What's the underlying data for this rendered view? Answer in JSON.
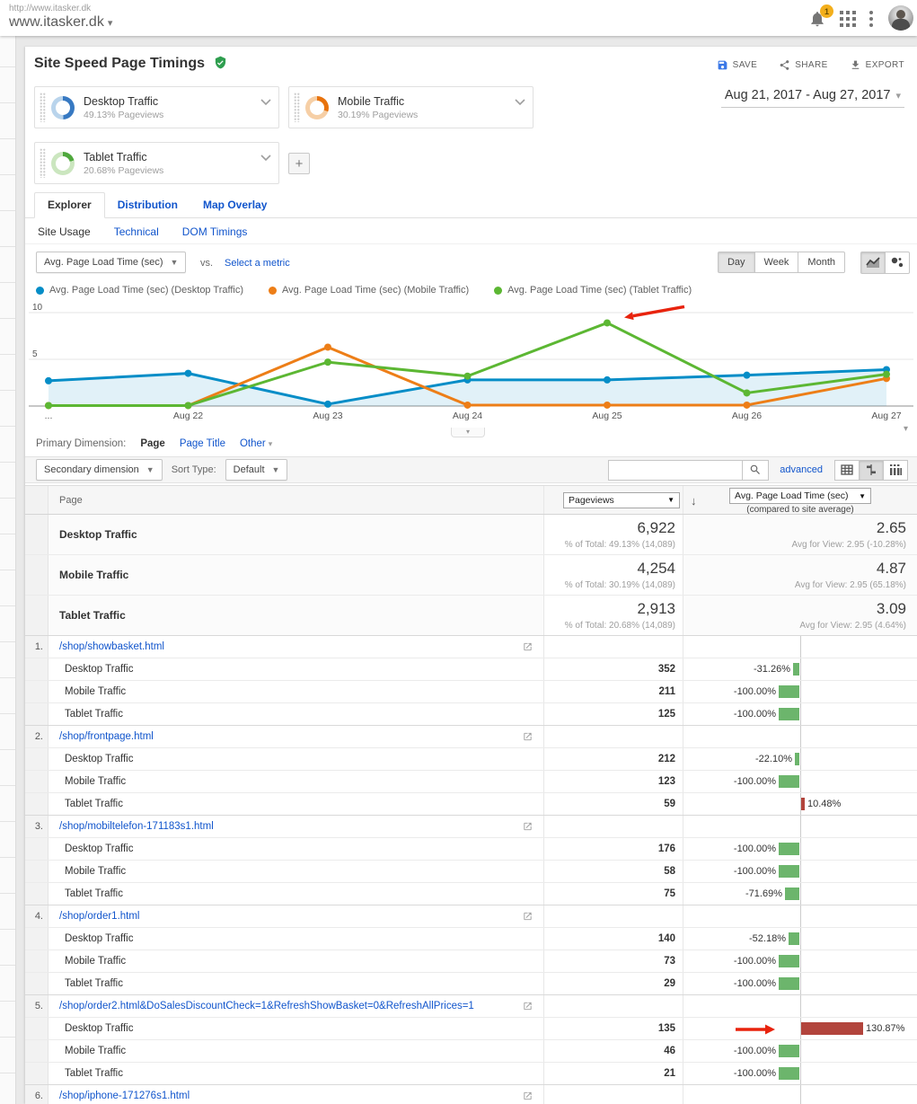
{
  "header": {
    "site_url": "http://www.itasker.dk",
    "site_name": "www.itasker.dk",
    "notification_count": "1"
  },
  "report": {
    "title": "Site Speed Page Timings"
  },
  "toolbar": {
    "save_label": "SAVE",
    "share_label": "SHARE",
    "export_label": "EXPORT",
    "date_range": "Aug 21, 2017 - Aug 27, 2017"
  },
  "segments": [
    {
      "name": "Desktop Traffic",
      "subtitle": "49.13% Pageviews",
      "pct": 49.13,
      "color": "#3779c2",
      "light_color": "#b9d4ec"
    },
    {
      "name": "Mobile Traffic",
      "subtitle": "30.19% Pageviews",
      "pct": 30.19,
      "color": "#e8720c",
      "light_color": "#f6cfa6"
    },
    {
      "name": "Tablet Traffic",
      "subtitle": "20.68% Pageviews",
      "pct": 20.68,
      "color": "#4fa83d",
      "light_color": "#cbe6bf"
    }
  ],
  "add_segment_label": "+",
  "tabs": {
    "main": [
      {
        "label": "Explorer",
        "active": true
      },
      {
        "label": "Distribution",
        "active": false
      },
      {
        "label": "Map Overlay",
        "active": false
      }
    ],
    "sub": [
      {
        "label": "Site Usage",
        "active": true
      },
      {
        "label": "Technical",
        "active": false
      },
      {
        "label": "DOM Timings",
        "active": false
      }
    ]
  },
  "controls": {
    "metric_dropdown": "Avg. Page Load Time (sec)",
    "vs_label": "vs.",
    "select_metric_label": "Select a metric",
    "granularity": [
      {
        "label": "Day",
        "active": true
      },
      {
        "label": "Week",
        "active": false
      },
      {
        "label": "Month",
        "active": false
      }
    ]
  },
  "chart_data": {
    "type": "line",
    "x": [
      "...",
      "Aug 22",
      "Aug 23",
      "Aug 24",
      "Aug 25",
      "Aug 26",
      "Aug 27"
    ],
    "ylim": [
      0,
      10
    ],
    "yticks": [
      5,
      10
    ],
    "grid": true,
    "legend_position": "top",
    "series": [
      {
        "name": "Avg. Page Load Time (sec) (Desktop Traffic)",
        "color": "#058dc7",
        "area_fill": true,
        "values": [
          2.7,
          3.5,
          0.2,
          2.8,
          2.8,
          3.3,
          3.9
        ]
      },
      {
        "name": "Avg. Page Load Time (sec) (Mobile Traffic)",
        "color": "#ed7e17",
        "area_fill": false,
        "values": [
          0.05,
          0.05,
          6.3,
          0.1,
          0.1,
          0.1,
          2.95
        ]
      },
      {
        "name": "Avg. Page Load Time (sec) (Tablet Traffic)",
        "color": "#5cb733",
        "area_fill": false,
        "values": [
          0.05,
          0.05,
          4.7,
          3.2,
          8.9,
          1.4,
          3.4
        ]
      }
    ],
    "annotations": [
      {
        "type": "arrow",
        "color": "#e8230d",
        "series_index": 2,
        "point_index": 4
      }
    ]
  },
  "dimension_bar": {
    "label": "Primary Dimension:",
    "options": [
      {
        "label": "Page",
        "active": true,
        "caret": false
      },
      {
        "label": "Page Title",
        "active": false,
        "caret": false
      },
      {
        "label": "Other",
        "active": false,
        "caret": true
      }
    ]
  },
  "table_toolbar": {
    "secondary_dimension_label": "Secondary dimension",
    "sort_type_label": "Sort Type:",
    "sort_default_label": "Default",
    "search_value": "",
    "advanced_label": "advanced"
  },
  "table": {
    "columns": {
      "page": "Page",
      "pageviews": "Pageviews",
      "metric": "Avg. Page Load Time (sec)",
      "metric_note": "(compared to site average)"
    },
    "summary_rows": [
      {
        "label": "Desktop Traffic",
        "pageviews": "6,922",
        "pv_sub": "% of Total: 49.13% (14,089)",
        "metric": "2.65",
        "metric_sub": "Avg for View: 2.95 (-10.28%)"
      },
      {
        "label": "Mobile Traffic",
        "pageviews": "4,254",
        "pv_sub": "% of Total: 30.19% (14,089)",
        "metric": "4.87",
        "metric_sub": "Avg for View: 2.95 (65.18%)"
      },
      {
        "label": "Tablet Traffic",
        "pageviews": "2,913",
        "pv_sub": "% of Total: 20.68% (14,089)",
        "metric": "3.09",
        "metric_sub": "Avg for View: 2.95 (4.64%)"
      }
    ],
    "groups": [
      {
        "num": "1.",
        "url": "/shop/showbasket.html",
        "rows": [
          {
            "label": "Desktop Traffic",
            "pageviews": "352",
            "delta_label": "-31.26%",
            "delta_value": -31.26
          },
          {
            "label": "Mobile Traffic",
            "pageviews": "211",
            "delta_label": "-100.00%",
            "delta_value": -100
          },
          {
            "label": "Tablet Traffic",
            "pageviews": "125",
            "delta_label": "-100.00%",
            "delta_value": -100
          }
        ]
      },
      {
        "num": "2.",
        "url": "/shop/frontpage.html",
        "rows": [
          {
            "label": "Desktop Traffic",
            "pageviews": "212",
            "delta_label": "-22.10%",
            "delta_value": -22.1
          },
          {
            "label": "Mobile Traffic",
            "pageviews": "123",
            "delta_label": "-100.00%",
            "delta_value": -100
          },
          {
            "label": "Tablet Traffic",
            "pageviews": "59",
            "delta_label": "10.48%",
            "delta_value": 10.48
          }
        ]
      },
      {
        "num": "3.",
        "url": "/shop/mobiltelefon-171183s1.html",
        "rows": [
          {
            "label": "Desktop Traffic",
            "pageviews": "176",
            "delta_label": "-100.00%",
            "delta_value": -100
          },
          {
            "label": "Mobile Traffic",
            "pageviews": "58",
            "delta_label": "-100.00%",
            "delta_value": -100
          },
          {
            "label": "Tablet Traffic",
            "pageviews": "75",
            "delta_label": "-71.69%",
            "delta_value": -71.69
          }
        ]
      },
      {
        "num": "4.",
        "url": "/shop/order1.html",
        "rows": [
          {
            "label": "Desktop Traffic",
            "pageviews": "140",
            "delta_label": "-52.18%",
            "delta_value": -52.18
          },
          {
            "label": "Mobile Traffic",
            "pageviews": "73",
            "delta_label": "-100.00%",
            "delta_value": -100
          },
          {
            "label": "Tablet Traffic",
            "pageviews": "29",
            "delta_label": "-100.00%",
            "delta_value": -100
          }
        ]
      },
      {
        "num": "5.",
        "url": "/shop/order2.html&DoSalesDiscountCheck=1&RefreshShowBasket=0&RefreshAllPrices=1",
        "rows": [
          {
            "label": "Desktop Traffic",
            "pageviews": "135",
            "delta_label": "130.87%",
            "delta_value": 130.87,
            "arrow": true
          },
          {
            "label": "Mobile Traffic",
            "pageviews": "46",
            "delta_label": "-100.00%",
            "delta_value": -100
          },
          {
            "label": "Tablet Traffic",
            "pageviews": "21",
            "delta_label": "-100.00%",
            "delta_value": -100
          }
        ]
      },
      {
        "num": "6.",
        "url": "/shop/iphone-171276s1.html",
        "rows": []
      }
    ]
  }
}
